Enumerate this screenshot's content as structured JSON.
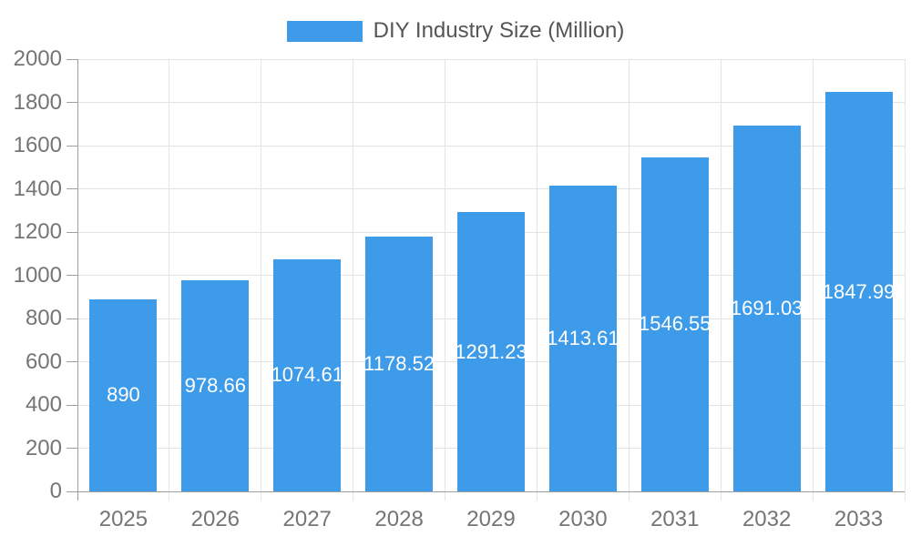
{
  "legend": {
    "label": "DIY Industry Size (Million)"
  },
  "chart_data": {
    "type": "bar",
    "title": "DIY Industry Size (Million)",
    "series_name": "DIY Industry Size (Million)",
    "categories": [
      "2025",
      "2026",
      "2027",
      "2028",
      "2029",
      "2030",
      "2031",
      "2032",
      "2033"
    ],
    "values": [
      890,
      978.66,
      1074.61,
      1178.52,
      1291.23,
      1413.61,
      1546.55,
      1691.03,
      1847.99
    ],
    "value_labels_text": [
      "890",
      "978.66",
      "1074.61",
      "1178.52",
      "1291.23",
      "1413.61",
      "1546.55",
      "1691.03",
      "1847.99"
    ],
    "value_label_position": "inside-center",
    "xlabel": "",
    "ylabel": "",
    "ylim": [
      0,
      2000
    ],
    "ytick_step": 200,
    "y_tick_labels": [
      "0",
      "200",
      "400",
      "600",
      "800",
      "1000",
      "1200",
      "1400",
      "1600",
      "1800",
      "2000"
    ],
    "grid": true,
    "legend_position": "top-center",
    "bar_color": "#3D9BE9",
    "value_label_color": "#ffffff",
    "axis_text_color": "#757575",
    "legend_text_color": "#555555",
    "grid_color": "#e4e4e4",
    "axis_line_color": "#9e9e9e",
    "background_color": "#ffffff"
  }
}
